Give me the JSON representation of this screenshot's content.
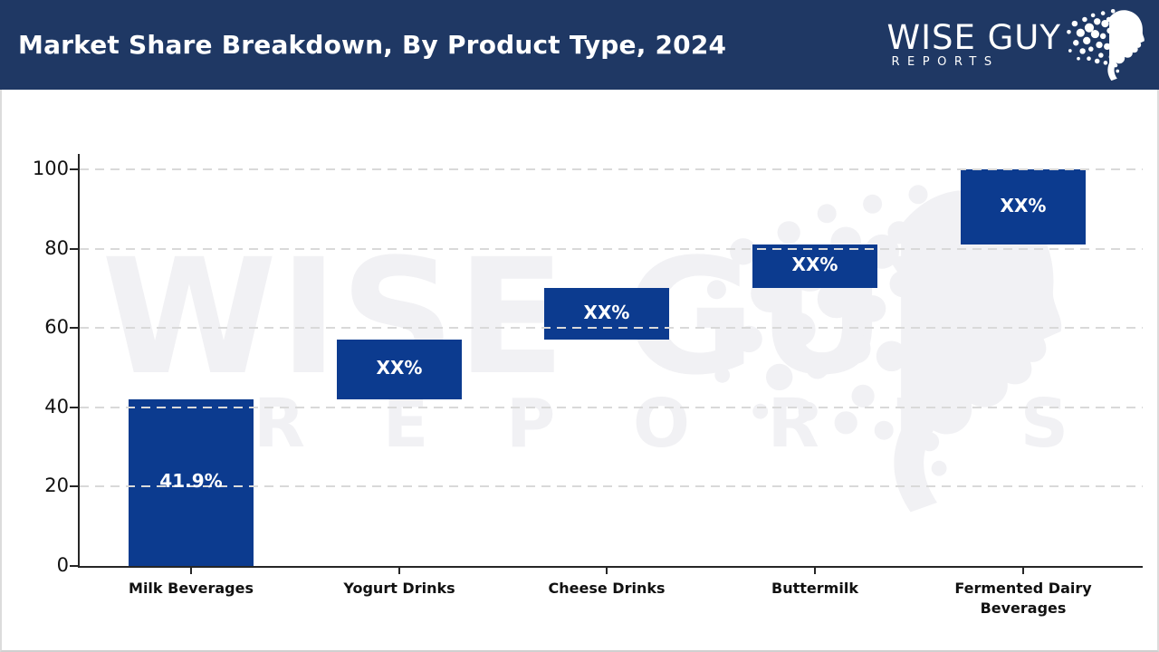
{
  "header": {
    "title": "Market Share Breakdown, By Product Type, 2024",
    "logo": {
      "line1": "WISE GUY",
      "line2": "REPORTS"
    }
  },
  "watermark": {
    "line1": "WISE GUY",
    "line2": "REPORTS"
  },
  "colors": {
    "header_bg": "#1f3864",
    "bar": "#0c3b8f",
    "bar_label": "#ffffff",
    "gridline": "#d9d9d9",
    "axis": "#262626",
    "watermark": "#f1f1f4"
  },
  "chart_data": {
    "type": "bar",
    "subtype": "waterfall",
    "title": "Market Share Breakdown, By Product Type, 2024",
    "categories": [
      "Milk Beverages",
      "Yogurt Drinks",
      "Cheese Drinks",
      "Buttermilk",
      "Fermented Dairy Beverages"
    ],
    "segments": [
      {
        "category": "Milk Beverages",
        "start": 0,
        "end": 41.9,
        "label": "41.9%"
      },
      {
        "category": "Yogurt Drinks",
        "start": 41.9,
        "end": 57,
        "label": "XX%"
      },
      {
        "category": "Cheese Drinks",
        "start": 57,
        "end": 70,
        "label": "XX%"
      },
      {
        "category": "Buttermilk",
        "start": 70,
        "end": 81,
        "label": "XX%"
      },
      {
        "category": "Fermented Dairy Beverages",
        "start": 81,
        "end": 100,
        "label": "XX%"
      }
    ],
    "xlabel": "",
    "ylabel": "",
    "ylim": [
      0,
      100
    ],
    "yticks": [
      0,
      20,
      40,
      60,
      80,
      100
    ],
    "grid": "horizontal-dashed, drawn above bars",
    "legend": "none"
  }
}
